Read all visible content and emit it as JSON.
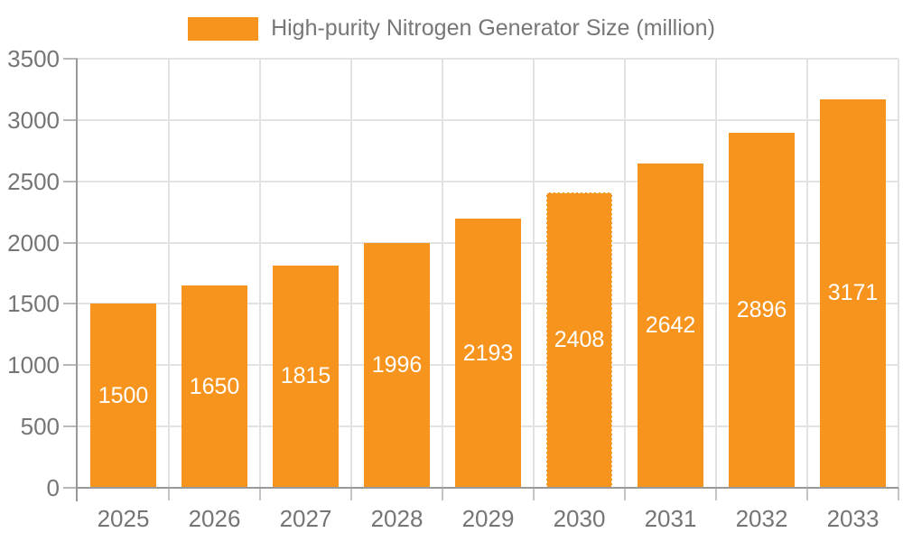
{
  "chart_data": {
    "type": "bar",
    "title": "High-purity Nitrogen Generator Size (million)",
    "legend": [
      "High-purity Nitrogen Generator Size (million)"
    ],
    "legend_position": "top-center",
    "categories": [
      "2025",
      "2026",
      "2027",
      "2028",
      "2029",
      "2030",
      "2031",
      "2032",
      "2033"
    ],
    "series": [
      {
        "name": "High-purity Nitrogen Generator Size (million)",
        "color": "#F7941E",
        "values": [
          1500,
          1650,
          1815,
          1996,
          2193,
          2408,
          2642,
          2896,
          3171
        ]
      }
    ],
    "xlabel": "",
    "ylabel": "",
    "ylim": [
      0,
      3500
    ],
    "yticks": [
      0,
      500,
      1000,
      1500,
      2000,
      2500,
      3000,
      3500
    ],
    "grid": true,
    "value_labels": {
      "position": "inside-center",
      "color": "#FFFFFF"
    },
    "selected_bar_index": 5
  },
  "colors": {
    "bar": "#F7941E",
    "gridline": "#E2E2E2",
    "axis_line": "#999999",
    "tick": "#B8B8B8",
    "axis_label_text": "#757575",
    "legend_text": "#777777",
    "bar_value_text": "#FFFFFF",
    "background": "#FFFFFF"
  }
}
